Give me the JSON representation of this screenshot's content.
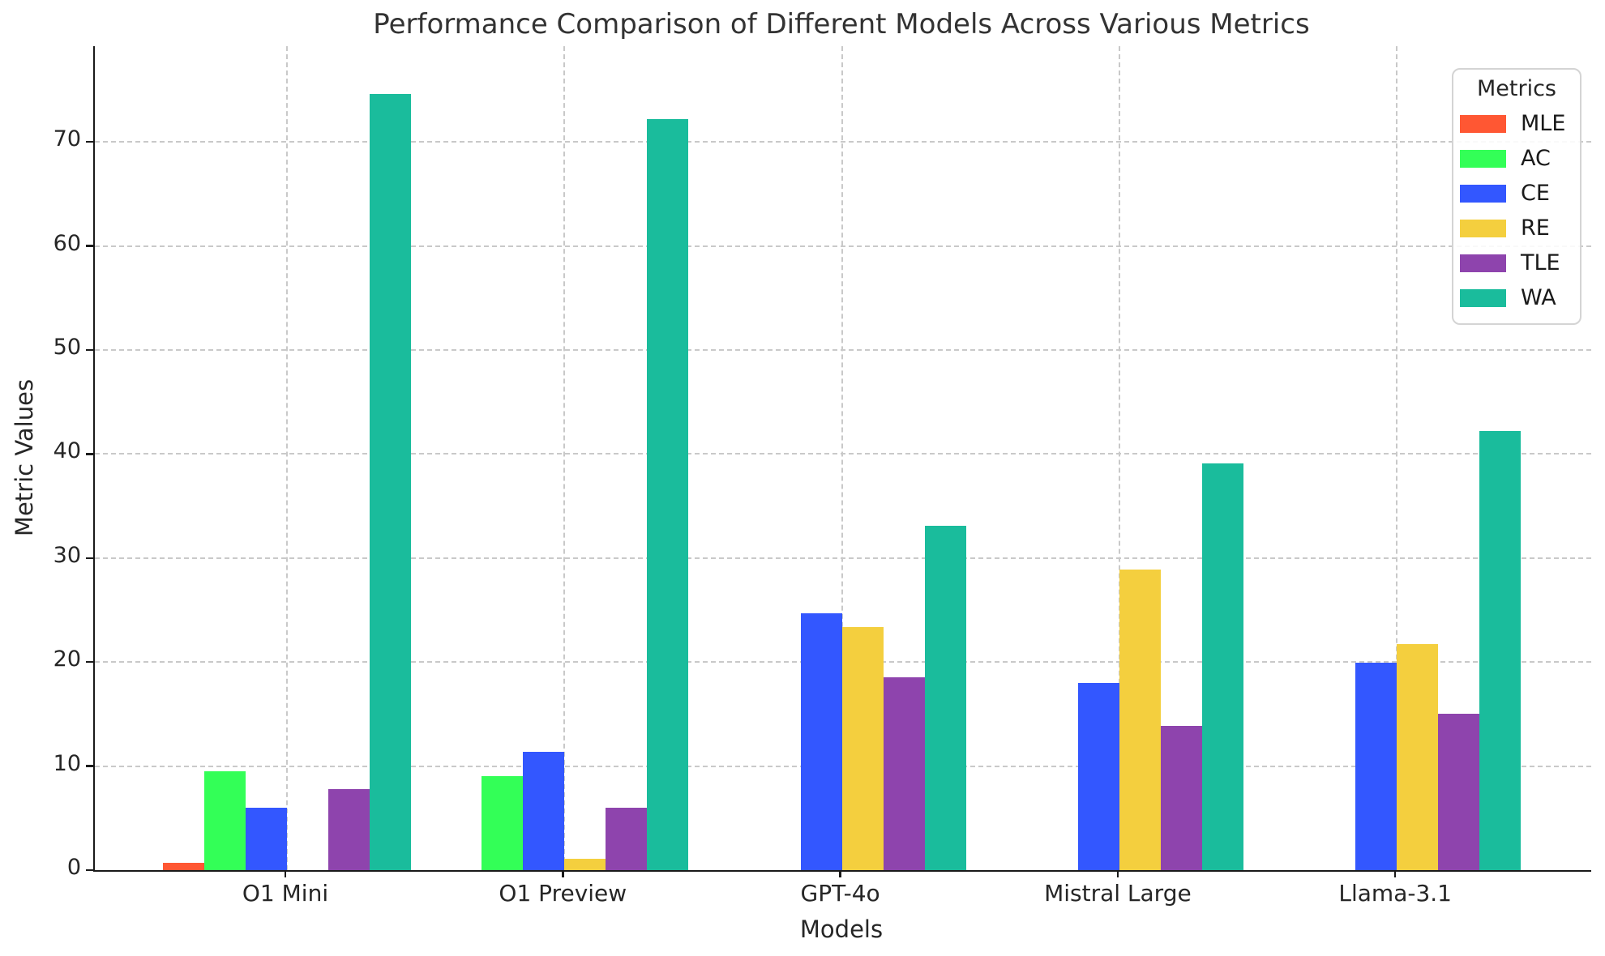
{
  "title": "Performance Comparison of Different Models Across Various Metrics",
  "xlabel": "Models",
  "ylabel": "Metric Values",
  "legend": {
    "title": "Metrics"
  },
  "chart_data": {
    "type": "bar",
    "title": "Performance Comparison of Different Models Across Various Metrics",
    "xlabel": "Models",
    "ylabel": "Metric Values",
    "categories": [
      "O1 Mini",
      "O1 Preview",
      "GPT-4o",
      "Mistral Large",
      "Llama-3.1"
    ],
    "series": [
      {
        "name": "MLE",
        "color": "#FF5733",
        "values": [
          0.7,
          0,
          0,
          0,
          0
        ]
      },
      {
        "name": "AC",
        "color": "#33FF57",
        "values": [
          9.5,
          9.0,
          0,
          0,
          0
        ]
      },
      {
        "name": "CE",
        "color": "#3357FF",
        "values": [
          6.0,
          11.4,
          24.7,
          18.0,
          19.9
        ]
      },
      {
        "name": "RE",
        "color": "#F4CF3E",
        "values": [
          0,
          1.1,
          23.4,
          28.9,
          21.7
        ]
      },
      {
        "name": "TLE",
        "color": "#8E44AD",
        "values": [
          7.8,
          6.0,
          18.5,
          13.9,
          15.0
        ]
      },
      {
        "name": "WA",
        "color": "#1ABC9C",
        "values": [
          74.6,
          72.2,
          33.1,
          39.1,
          42.2
        ]
      }
    ],
    "yticks": [
      0,
      10,
      20,
      30,
      40,
      50,
      60,
      70
    ],
    "ylim": [
      0,
      79.2
    ],
    "grid": {
      "axis": "both",
      "style": "dashed",
      "color": "#c9c9c9"
    },
    "legend": {
      "title": "Metrics",
      "position": "upper right"
    }
  }
}
